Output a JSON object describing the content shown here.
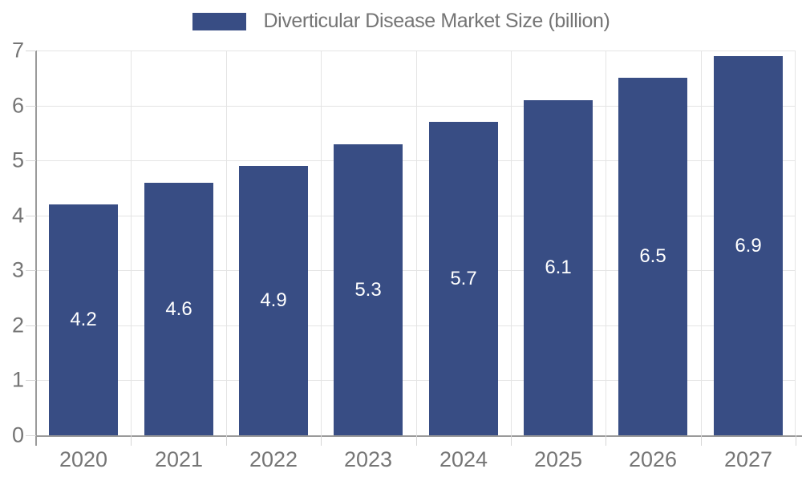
{
  "chart_data": {
    "type": "bar",
    "title": "Diverticular Disease Market Size (billion)",
    "legend": {
      "label": "Diverticular Disease Market Size (billion)",
      "position": "top-center"
    },
    "categories": [
      "2020",
      "2021",
      "2022",
      "2023",
      "2024",
      "2025",
      "2026",
      "2027"
    ],
    "values": [
      4.2,
      4.6,
      4.9,
      5.3,
      5.7,
      6.1,
      6.5,
      6.9
    ],
    "value_labels": [
      "4.2",
      "4.6",
      "4.9",
      "5.3",
      "5.7",
      "6.1",
      "6.5",
      "6.9"
    ],
    "xlabel": "",
    "ylabel": "",
    "ylim": [
      0,
      7
    ],
    "yticks": [
      0,
      1,
      2,
      3,
      4,
      5,
      6,
      7
    ],
    "grid": true,
    "colors": {
      "bar": "#384D84",
      "grid": "#E4E4E4",
      "axis": "#9A9A9A",
      "tick_mark": "#D6D6D6",
      "text": "#757575",
      "bar_label": "#FFFFFF",
      "background": "#FFFFFF"
    }
  }
}
